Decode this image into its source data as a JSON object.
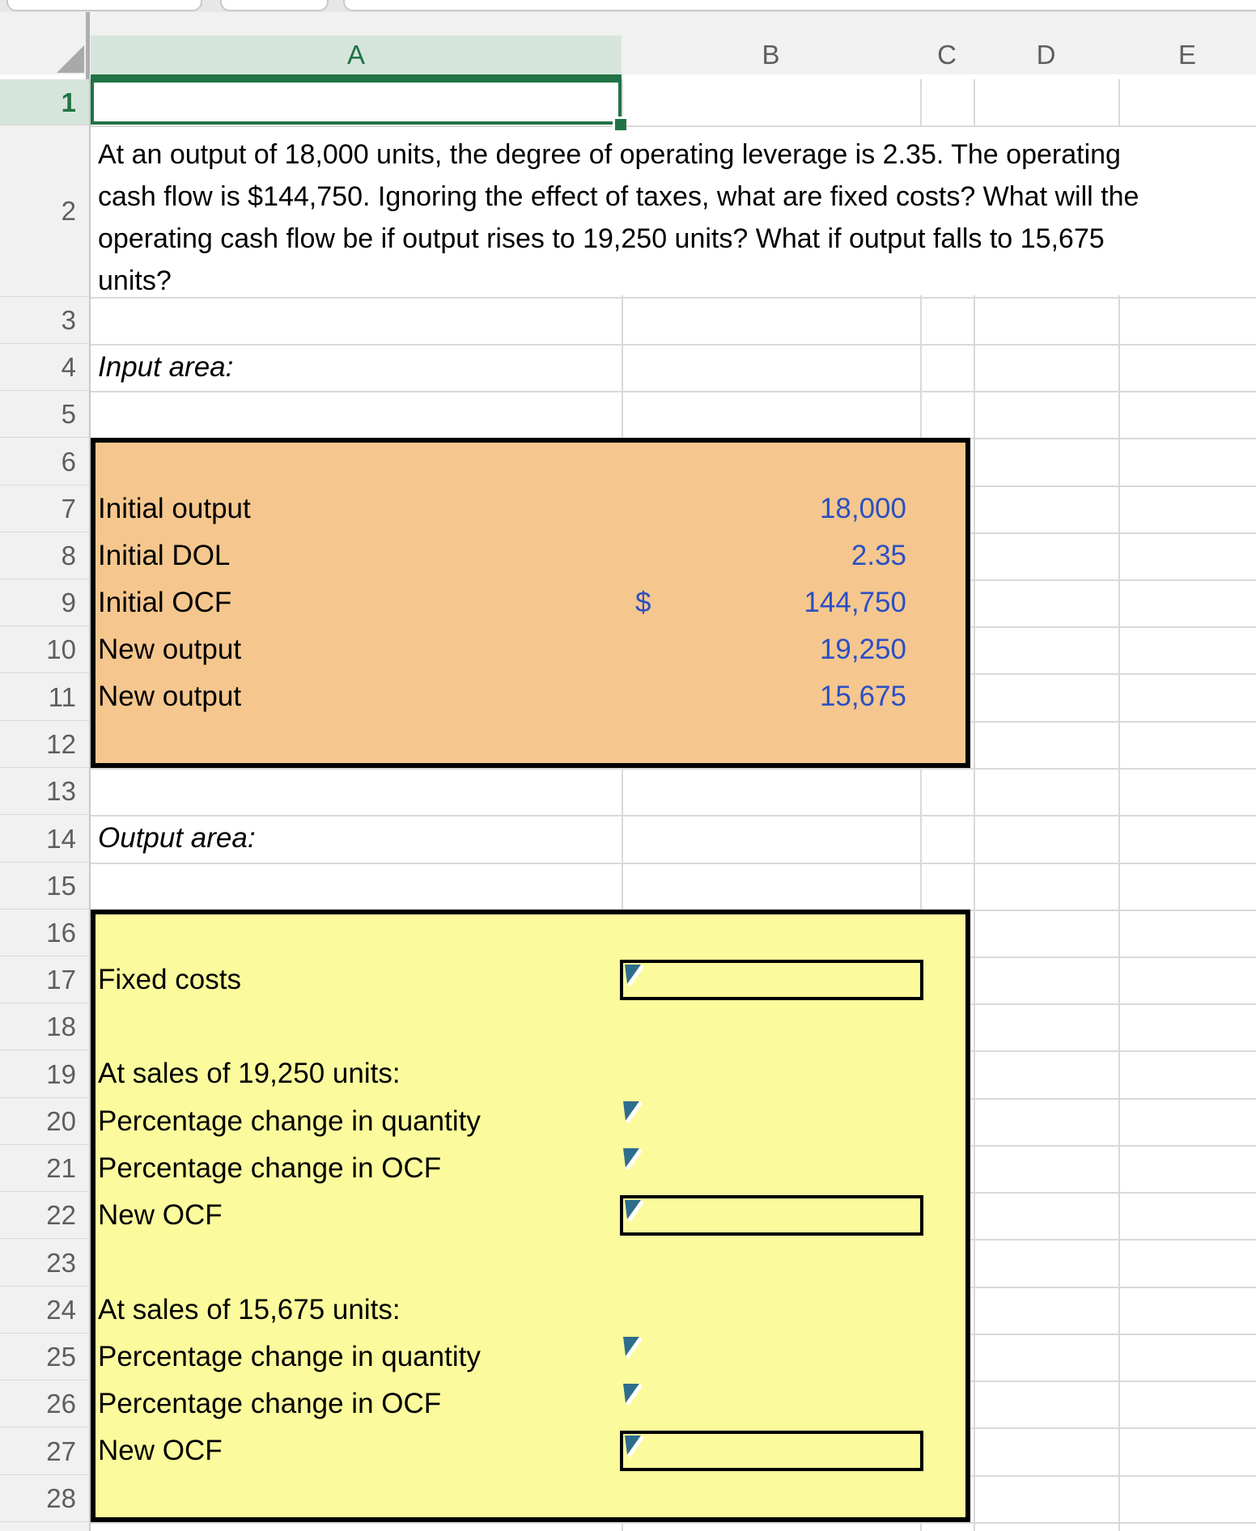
{
  "sheet": {
    "columns": [
      "A",
      "B",
      "C",
      "D",
      "E"
    ],
    "selected_column": "A",
    "rows": [
      "1",
      "2",
      "3",
      "4",
      "5",
      "6",
      "7",
      "8",
      "9",
      "10",
      "11",
      "12",
      "13",
      "14",
      "15",
      "16",
      "17",
      "18",
      "19",
      "20",
      "21",
      "22",
      "23",
      "24",
      "25",
      "26",
      "27",
      "28"
    ],
    "selected_row": "1",
    "question": {
      "lines": [
        "At an output of 18,000 units, the degree of operating leverage is 2.35. The operating",
        "cash flow is $144,750. Ignoring the effect of taxes, what are fixed costs? What will the",
        "operating cash flow be if output rises to 19,250 units? What if output falls to 15,675",
        "units?"
      ]
    },
    "section_labels": {
      "input_area": "Input area:",
      "output_area": "Output area:"
    },
    "input_box": {
      "rows": [
        {
          "label": "Initial output",
          "value": "18,000"
        },
        {
          "label": "Initial DOL",
          "value": "2.35"
        },
        {
          "label": "Initial OCF",
          "currency": "$",
          "value": "144,750"
        },
        {
          "label": "New output",
          "value": "19,250"
        },
        {
          "label": "New output",
          "value": "15,675"
        }
      ]
    },
    "output_box": {
      "fixed_costs_label": "Fixed costs",
      "section1_heading": "At sales of 19,250 units:",
      "section1_rows": [
        "Percentage change in quantity",
        "Percentage change in OCF",
        "New OCF"
      ],
      "section2_heading": "At sales of 15,675 units:",
      "section2_rows": [
        "Percentage change in quantity",
        "Percentage change in OCF",
        "New OCF"
      ]
    }
  },
  "colors": {
    "selection_green": "#217346",
    "header_green_fill": "#d6e5dc",
    "input_box_fill": "#f5c78e",
    "output_box_fill": "#fbfb9d",
    "value_blue": "#2b4fc4",
    "flag_teal": "#2e6d8c",
    "gridline": "#d9d9d9"
  }
}
